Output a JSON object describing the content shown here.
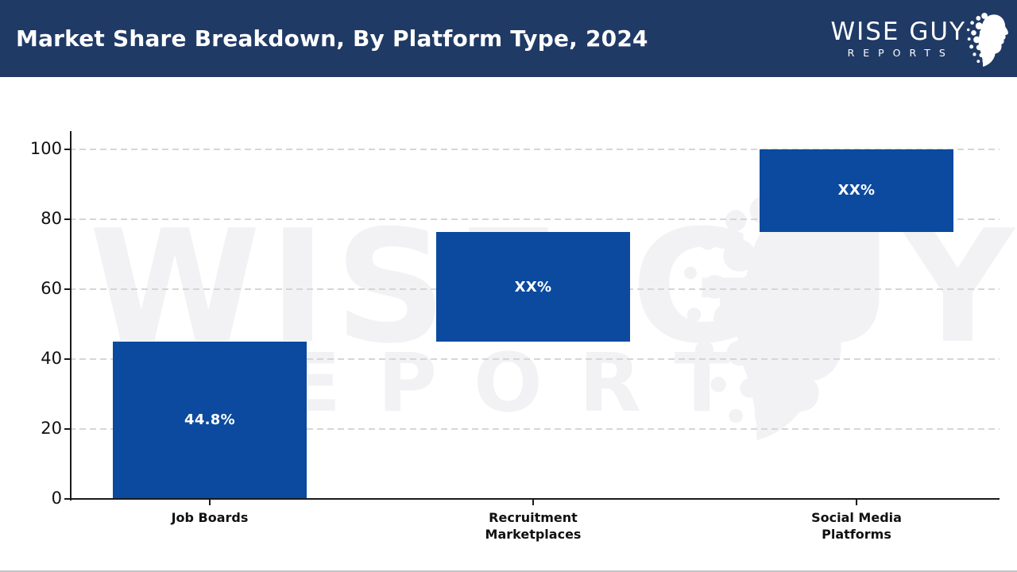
{
  "header": {
    "title": "Market Share Breakdown, By Platform Type, 2024",
    "logo": {
      "brand_line1": "WISE GUY",
      "brand_line2": "REPORTS"
    }
  },
  "watermark": {
    "line1": "WISE GUY",
    "line2": "REPORTS"
  },
  "chart_data": {
    "type": "bar",
    "variant": "floating-segment waterfall (stacked market-share breakdown)",
    "title": "Market Share Breakdown, By Platform Type, 2024",
    "categories": [
      "Job Boards",
      "Recruitment Marketplaces",
      "Social Media Platforms"
    ],
    "category_label_lines": [
      [
        "Job Boards"
      ],
      [
        "Recruitment",
        "Marketplaces"
      ],
      [
        "Social Media",
        "Platforms"
      ]
    ],
    "segments": [
      {
        "category": "Job Boards",
        "start": 0,
        "end": 44.8,
        "label": "44.8%"
      },
      {
        "category": "Recruitment Marketplaces",
        "start": 44.8,
        "end": 76.2,
        "label": "XX%"
      },
      {
        "category": "Social Media Platforms",
        "start": 76.2,
        "end": 100,
        "label": "XX%"
      }
    ],
    "xlabel": "",
    "ylabel": "",
    "ylim": [
      0,
      100
    ],
    "yticks": [
      0,
      20,
      40,
      60,
      80,
      100
    ],
    "grid": "horizontal dashed lines",
    "legend": "none",
    "bar_color": "#0b4a9e",
    "bar_label_color": "#ffffff"
  },
  "colors": {
    "header_bg": "#203a66",
    "header_text": "#ffffff",
    "bar": "#0b4a9e",
    "grid": "#d6d6d6",
    "axis": "#1a1a1a",
    "watermark": "#f2f2f4",
    "bottom_rule": "#c4c4c8"
  }
}
